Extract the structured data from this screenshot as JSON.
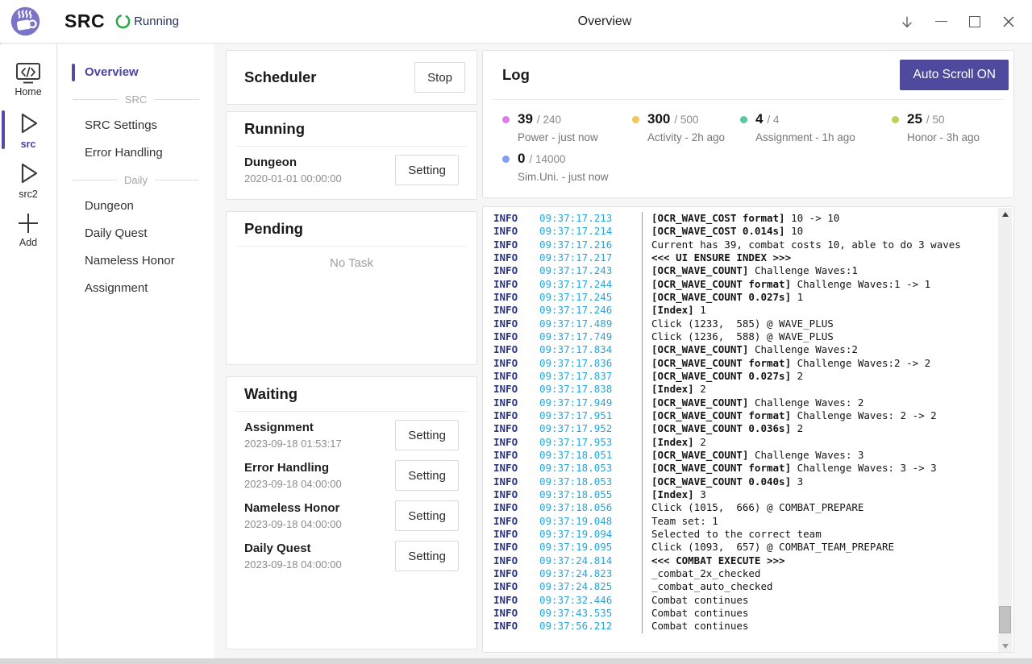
{
  "titlebar": {
    "app_name": "SRC",
    "status": "Running",
    "page_title": "Overview",
    "controls": [
      "hide-icon",
      "minimize-icon",
      "maximize-icon",
      "close-icon"
    ]
  },
  "rail": {
    "items": [
      {
        "label": "Home",
        "icon": "code-monitor-icon",
        "active": false
      },
      {
        "label": "src",
        "icon": "play-icon",
        "active": true
      },
      {
        "label": "src2",
        "icon": "play-icon",
        "active": false
      },
      {
        "label": "Add",
        "icon": "plus-icon",
        "active": false
      }
    ]
  },
  "nav": {
    "items": [
      {
        "type": "item",
        "label": "Overview",
        "active": true
      },
      {
        "type": "divider",
        "label": "SRC"
      },
      {
        "type": "item",
        "label": "SRC Settings"
      },
      {
        "type": "item",
        "label": "Error Handling"
      },
      {
        "type": "divider",
        "label": "Daily"
      },
      {
        "type": "item",
        "label": "Dungeon"
      },
      {
        "type": "item",
        "label": "Daily Quest"
      },
      {
        "type": "item",
        "label": "Nameless Honor"
      },
      {
        "type": "item",
        "label": "Assignment"
      }
    ]
  },
  "scheduler": {
    "title": "Scheduler",
    "stop_label": "Stop"
  },
  "running": {
    "title": "Running",
    "tasks": [
      {
        "name": "Dungeon",
        "time": "2020-01-01 00:00:00",
        "button_label": "Setting"
      }
    ]
  },
  "pending": {
    "title": "Pending",
    "empty_text": "No Task"
  },
  "waiting": {
    "title": "Waiting",
    "tasks": [
      {
        "name": "Assignment",
        "time": "2023-09-18 01:53:17",
        "button_label": "Setting"
      },
      {
        "name": "Error Handling",
        "time": "2023-09-18 04:00:00",
        "button_label": "Setting"
      },
      {
        "name": "Nameless Honor",
        "time": "2023-09-18 04:00:00",
        "button_label": "Setting"
      },
      {
        "name": "Daily Quest",
        "time": "2023-09-18 04:00:00",
        "button_label": "Setting"
      }
    ]
  },
  "log": {
    "title": "Log",
    "autoscroll_label": "Auto Scroll ON",
    "stats": [
      {
        "value": "39",
        "total": "240",
        "caption": "Power - just now",
        "color": "#e07ce4"
      },
      {
        "value": "300",
        "total": "500",
        "caption": "Activity - 2h ago",
        "color": "#f3c65b"
      },
      {
        "value": "4",
        "total": "4",
        "caption": "Assignment - 1h ago",
        "color": "#57c7a4"
      },
      {
        "value": "25",
        "total": "50",
        "caption": "Honor - 3h ago",
        "color": "#bdd159"
      },
      {
        "value": "0",
        "total": "14000",
        "caption": "Sim.Uni. - just now",
        "color": "#7f9ff0"
      }
    ],
    "lines": [
      {
        "level": "INFO",
        "time": "09:37:17.213",
        "msg": "[OCR_WAVE_COST format] 10 -> 10",
        "strong": false
      },
      {
        "level": "INFO",
        "time": "09:37:17.214",
        "msg": "[OCR_WAVE_COST 0.014s] 10",
        "strong": false
      },
      {
        "level": "INFO",
        "time": "09:37:17.216",
        "msg": "Current has 39, combat costs 10, able to do 3 waves",
        "strong": false
      },
      {
        "level": "INFO",
        "time": "09:37:17.217",
        "msg": "<<< UI ENSURE INDEX >>>",
        "strong": true
      },
      {
        "level": "INFO",
        "time": "09:37:17.243",
        "msg": "[OCR_WAVE_COUNT] Challenge Waves:1",
        "strong": false
      },
      {
        "level": "INFO",
        "time": "09:37:17.244",
        "msg": "[OCR_WAVE_COUNT format] Challenge Waves:1 -> 1",
        "strong": false
      },
      {
        "level": "INFO",
        "time": "09:37:17.245",
        "msg": "[OCR_WAVE_COUNT 0.027s] 1",
        "strong": false
      },
      {
        "level": "INFO",
        "time": "09:37:17.246",
        "msg": "[Index] 1",
        "strong": false
      },
      {
        "level": "INFO",
        "time": "09:37:17.489",
        "msg": "Click (1233,  585) @ WAVE_PLUS",
        "strong": false
      },
      {
        "level": "INFO",
        "time": "09:37:17.749",
        "msg": "Click (1236,  588) @ WAVE_PLUS",
        "strong": false
      },
      {
        "level": "INFO",
        "time": "09:37:17.834",
        "msg": "[OCR_WAVE_COUNT] Challenge Waves:2",
        "strong": false
      },
      {
        "level": "INFO",
        "time": "09:37:17.836",
        "msg": "[OCR_WAVE_COUNT format] Challenge Waves:2 -> 2",
        "strong": false
      },
      {
        "level": "INFO",
        "time": "09:37:17.837",
        "msg": "[OCR_WAVE_COUNT 0.027s] 2",
        "strong": false
      },
      {
        "level": "INFO",
        "time": "09:37:17.838",
        "msg": "[Index] 2",
        "strong": false
      },
      {
        "level": "INFO",
        "time": "09:37:17.949",
        "msg": "[OCR_WAVE_COUNT] Challenge Waves: 2",
        "strong": false
      },
      {
        "level": "INFO",
        "time": "09:37:17.951",
        "msg": "[OCR_WAVE_COUNT format] Challenge Waves: 2 -> 2",
        "strong": false
      },
      {
        "level": "INFO",
        "time": "09:37:17.952",
        "msg": "[OCR_WAVE_COUNT 0.036s] 2",
        "strong": false
      },
      {
        "level": "INFO",
        "time": "09:37:17.953",
        "msg": "[Index] 2",
        "strong": false
      },
      {
        "level": "INFO",
        "time": "09:37:18.051",
        "msg": "[OCR_WAVE_COUNT] Challenge Waves: 3",
        "strong": false
      },
      {
        "level": "INFO",
        "time": "09:37:18.053",
        "msg": "[OCR_WAVE_COUNT format] Challenge Waves: 3 -> 3",
        "strong": false
      },
      {
        "level": "INFO",
        "time": "09:37:18.053",
        "msg": "[OCR_WAVE_COUNT 0.040s] 3",
        "strong": false
      },
      {
        "level": "INFO",
        "time": "09:37:18.055",
        "msg": "[Index] 3",
        "strong": false
      },
      {
        "level": "INFO",
        "time": "09:37:18.056",
        "msg": "Click (1015,  666) @ COMBAT_PREPARE",
        "strong": false
      },
      {
        "level": "INFO",
        "time": "09:37:19.048",
        "msg": "Team set: 1",
        "strong": false
      },
      {
        "level": "INFO",
        "time": "09:37:19.094",
        "msg": "Selected to the correct team",
        "strong": false
      },
      {
        "level": "INFO",
        "time": "09:37:19.095",
        "msg": "Click (1093,  657) @ COMBAT_TEAM_PREPARE",
        "strong": false
      },
      {
        "level": "INFO",
        "time": "09:37:24.814",
        "msg": "<<< COMBAT EXECUTE >>>",
        "strong": true
      },
      {
        "level": "INFO",
        "time": "09:37:24.823",
        "msg": "_combat_2x_checked",
        "strong": false
      },
      {
        "level": "INFO",
        "time": "09:37:24.825",
        "msg": "_combat_auto_checked",
        "strong": false
      },
      {
        "level": "INFO",
        "time": "09:37:32.446",
        "msg": "Combat continues",
        "strong": false
      },
      {
        "level": "INFO",
        "time": "09:37:43.535",
        "msg": "Combat continues",
        "strong": false
      },
      {
        "level": "INFO",
        "time": "09:37:56.212",
        "msg": "Combat continues",
        "strong": false
      }
    ]
  }
}
